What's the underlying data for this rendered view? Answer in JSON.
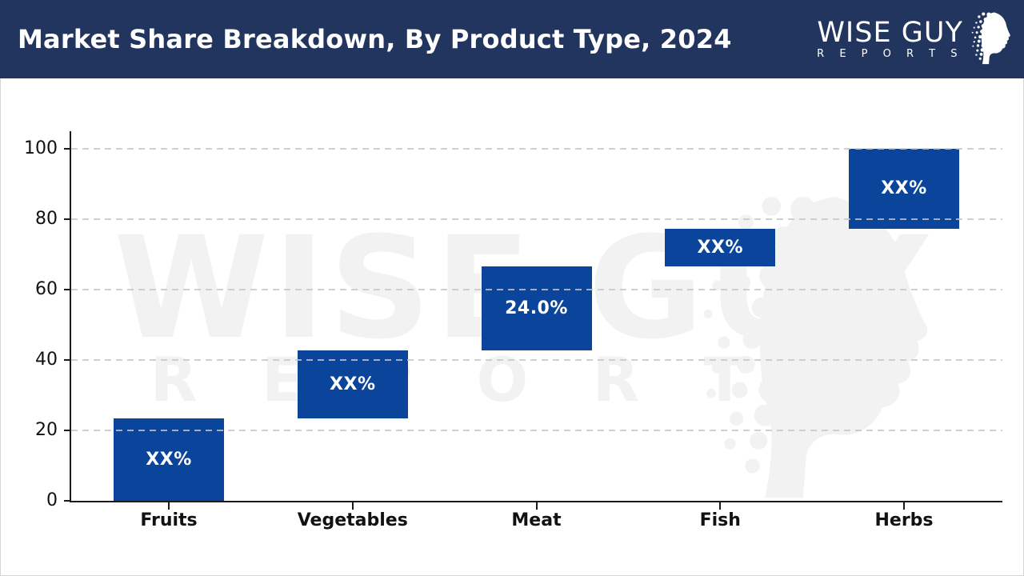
{
  "header": {
    "title": "Market Share Breakdown, By Product Type, 2024",
    "bg_color": "#21355E",
    "logo": {
      "line1": "WISE GUY",
      "line2": "R E P O R T S"
    }
  },
  "watermark": {
    "line1": "WISE GUY",
    "line2": "R E P O R T S"
  },
  "chart_data": {
    "type": "bar",
    "subtype": "waterfall-stacked-share",
    "title": "Market Share Breakdown, By Product Type, 2024",
    "xlabel": "",
    "ylabel": "",
    "categories": [
      "Fruits",
      "Vegetables",
      "Meat",
      "Fish",
      "Herbs"
    ],
    "series": [
      {
        "name": "Market share (%)",
        "segments": [
          {
            "category": "Fruits",
            "start": 0,
            "end": 23.4,
            "value_label": "XX%"
          },
          {
            "category": "Vegetables",
            "start": 23.4,
            "end": 42.6,
            "value_label": "XX%"
          },
          {
            "category": "Meat",
            "start": 42.6,
            "end": 66.6,
            "value_label": "24.0%"
          },
          {
            "category": "Fish",
            "start": 66.6,
            "end": 77.2,
            "value_label": "XX%"
          },
          {
            "category": "Herbs",
            "start": 77.2,
            "end": 100.0,
            "value_label": "XX%"
          }
        ]
      }
    ],
    "yticks": [
      0,
      20,
      40,
      60,
      80,
      100
    ],
    "ylim": [
      0,
      100
    ],
    "grid": "horizontal-dashed",
    "legend": "none",
    "bar_color": "#0A459B",
    "bar_label_color": "#ffffff",
    "axis_color": "#1a1a1a"
  }
}
